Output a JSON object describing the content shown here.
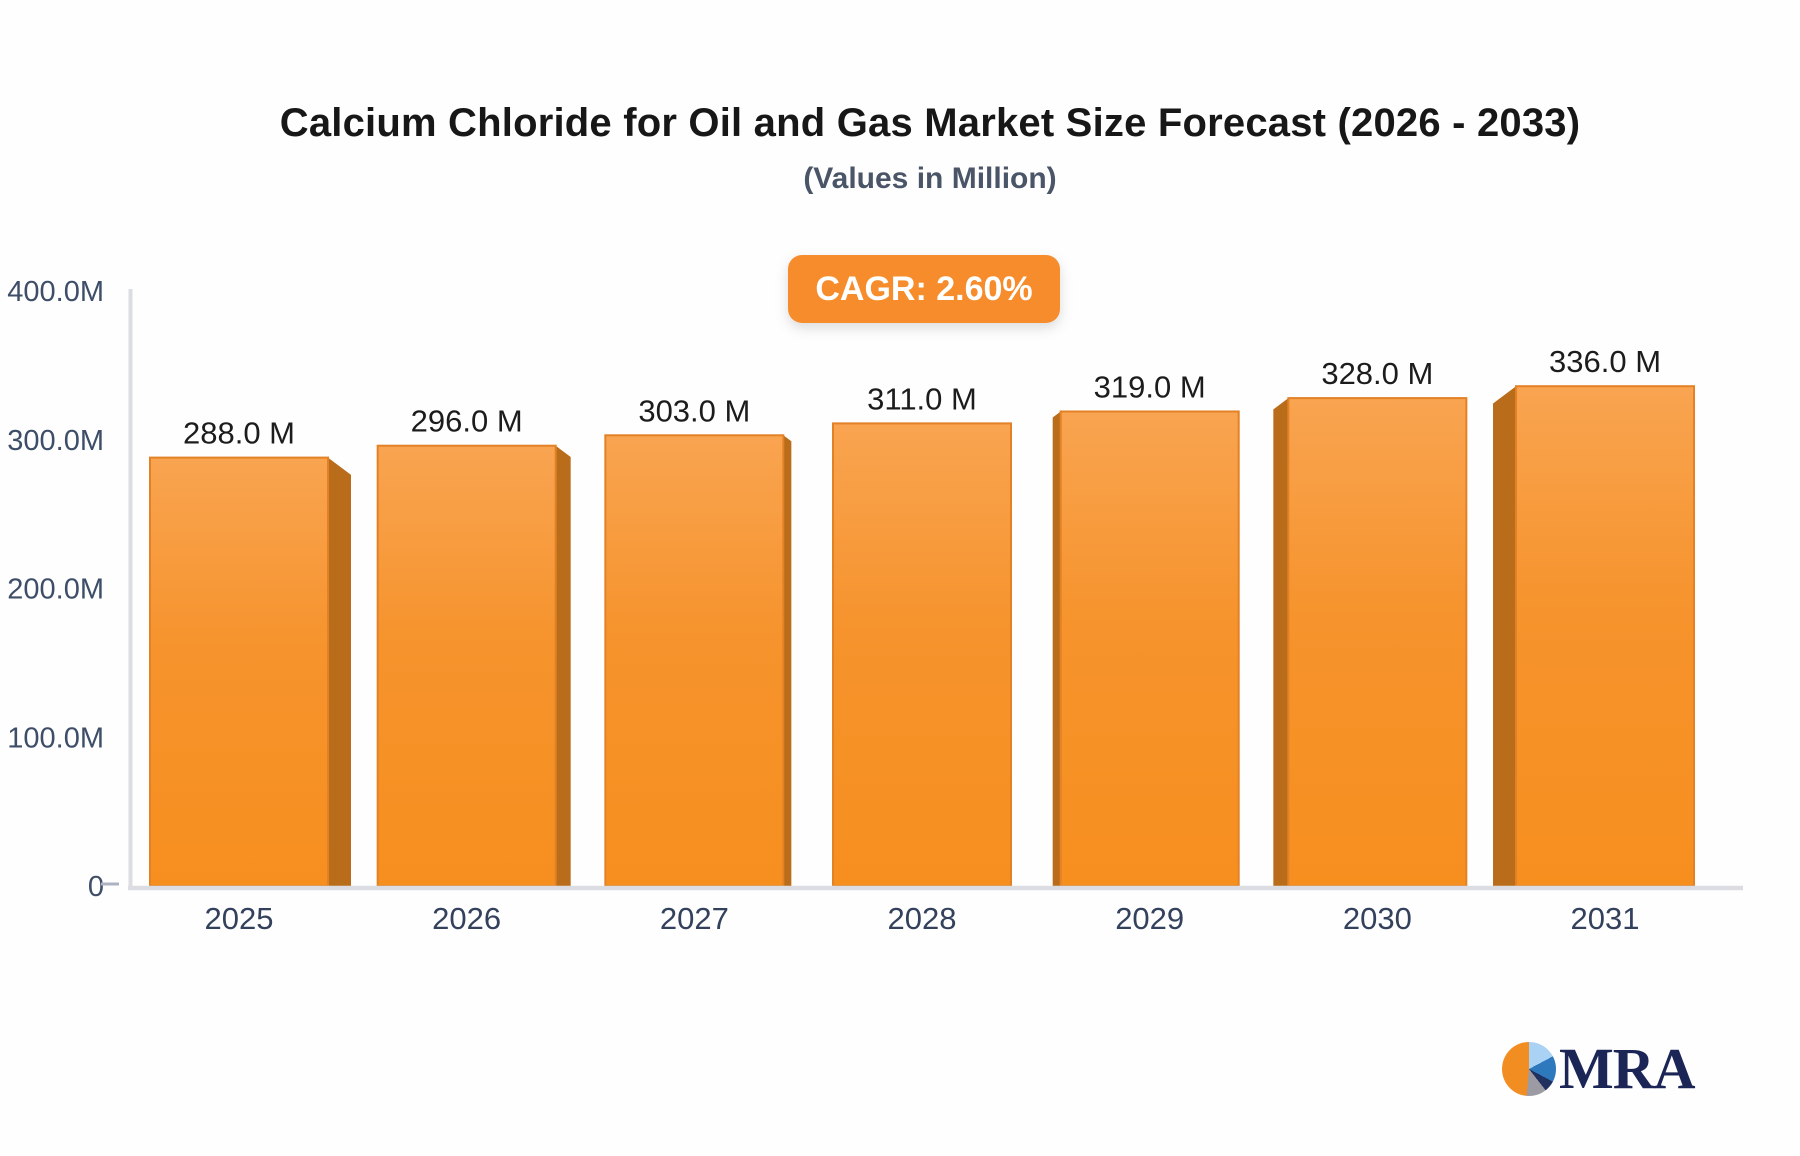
{
  "chart_data": {
    "type": "bar",
    "title": "Calcium Chloride for Oil and Gas Market Size Forecast (2026 - 2033)",
    "subtitle": "(Values in Million)",
    "badge_label": "CAGR: 2.60%",
    "categories": [
      "2025",
      "2026",
      "2027",
      "2028",
      "2029",
      "2030",
      "2031"
    ],
    "values": [
      288,
      296,
      303,
      311,
      319,
      328,
      336
    ],
    "value_labels": [
      "288.0 M",
      "296.0 M",
      "303.0 M",
      "311.0 M",
      "319.0 M",
      "328.0 M",
      "336.0 M"
    ],
    "yticks": [
      {
        "label": "400.0M",
        "value": 400
      },
      {
        "label": "300.0M",
        "value": 300
      },
      {
        "label": "200.0M",
        "value": 200
      },
      {
        "label": "100.0M",
        "value": 100
      },
      {
        "label": "0",
        "value": 0
      }
    ],
    "ylim": [
      0,
      400
    ],
    "xlabel": "",
    "ylabel": "",
    "grid": false,
    "legend": null,
    "bar_style": "3d-perspective"
  },
  "colors": {
    "background": "#fefefe",
    "bar_front_top": "#f9a451",
    "bar_front_mid": "#f6932c",
    "bar_front_bottom": "#f78f1f",
    "bar_stroke": "#e28126",
    "bar_side": "#b96c1a",
    "badge_bg": "#f68c2b",
    "badge_text": "#ffffff",
    "axis_line": "#dcdde2",
    "zero_tick": "#acb2bf",
    "title": "#171717",
    "subtitle": "#4a5568",
    "ytick_text": "#3e4e68",
    "xtick_text": "#33415c",
    "value_label": "#1c1c1c",
    "logo_navy": "#1b2656",
    "logo_orange": "#f28d21",
    "logo_lightblue": "#a9d2f4",
    "logo_blue": "#2e79be",
    "logo_gray": "#9c9ba4"
  },
  "logo": {
    "text": "MRA"
  }
}
